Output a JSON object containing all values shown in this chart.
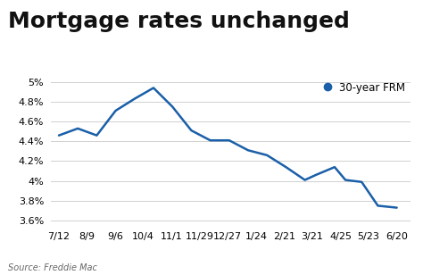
{
  "title": "Mortgage rates unchanged",
  "legend_label": "30-year FRM",
  "source": "Source: Freddie Mac",
  "x_labels": [
    "7/12",
    "8/9",
    "9/6",
    "10/4",
    "11/1",
    "11/29",
    "12/27",
    "1/24",
    "2/21",
    "3/21",
    "4/25",
    "5/23",
    "6/20"
  ],
  "y_values": [
    4.46,
    4.53,
    4.46,
    4.71,
    4.83,
    4.94,
    4.75,
    4.51,
    4.41,
    4.41,
    4.31,
    4.26,
    4.14,
    4.01,
    4.06,
    4.14,
    4.01,
    3.99,
    3.75,
    3.73
  ],
  "x_indices": [
    0,
    0.7,
    1.4,
    2.1,
    2.8,
    3.5,
    4.2,
    4.9,
    5.6,
    6.3,
    7.0,
    7.7,
    8.4,
    9.1,
    9.5,
    10.2,
    10.6,
    11.2,
    11.8,
    12.5
  ],
  "line_color": "#1a5fa8",
  "marker_color": "#1a5fa8",
  "background_color": "#ffffff",
  "grid_color": "#d0d0d0",
  "ylim": [
    3.55,
    5.05
  ],
  "yticks": [
    3.6,
    3.8,
    4.0,
    4.2,
    4.4,
    4.6,
    4.8,
    5.0
  ],
  "ytick_labels": [
    "3.6%",
    "3.8%",
    "4%",
    "4.2%",
    "4.4%",
    "4.6%",
    "4.8%",
    "5%"
  ],
  "title_fontsize": 18,
  "axis_fontsize": 8,
  "source_fontsize": 7,
  "legend_fontsize": 8.5
}
